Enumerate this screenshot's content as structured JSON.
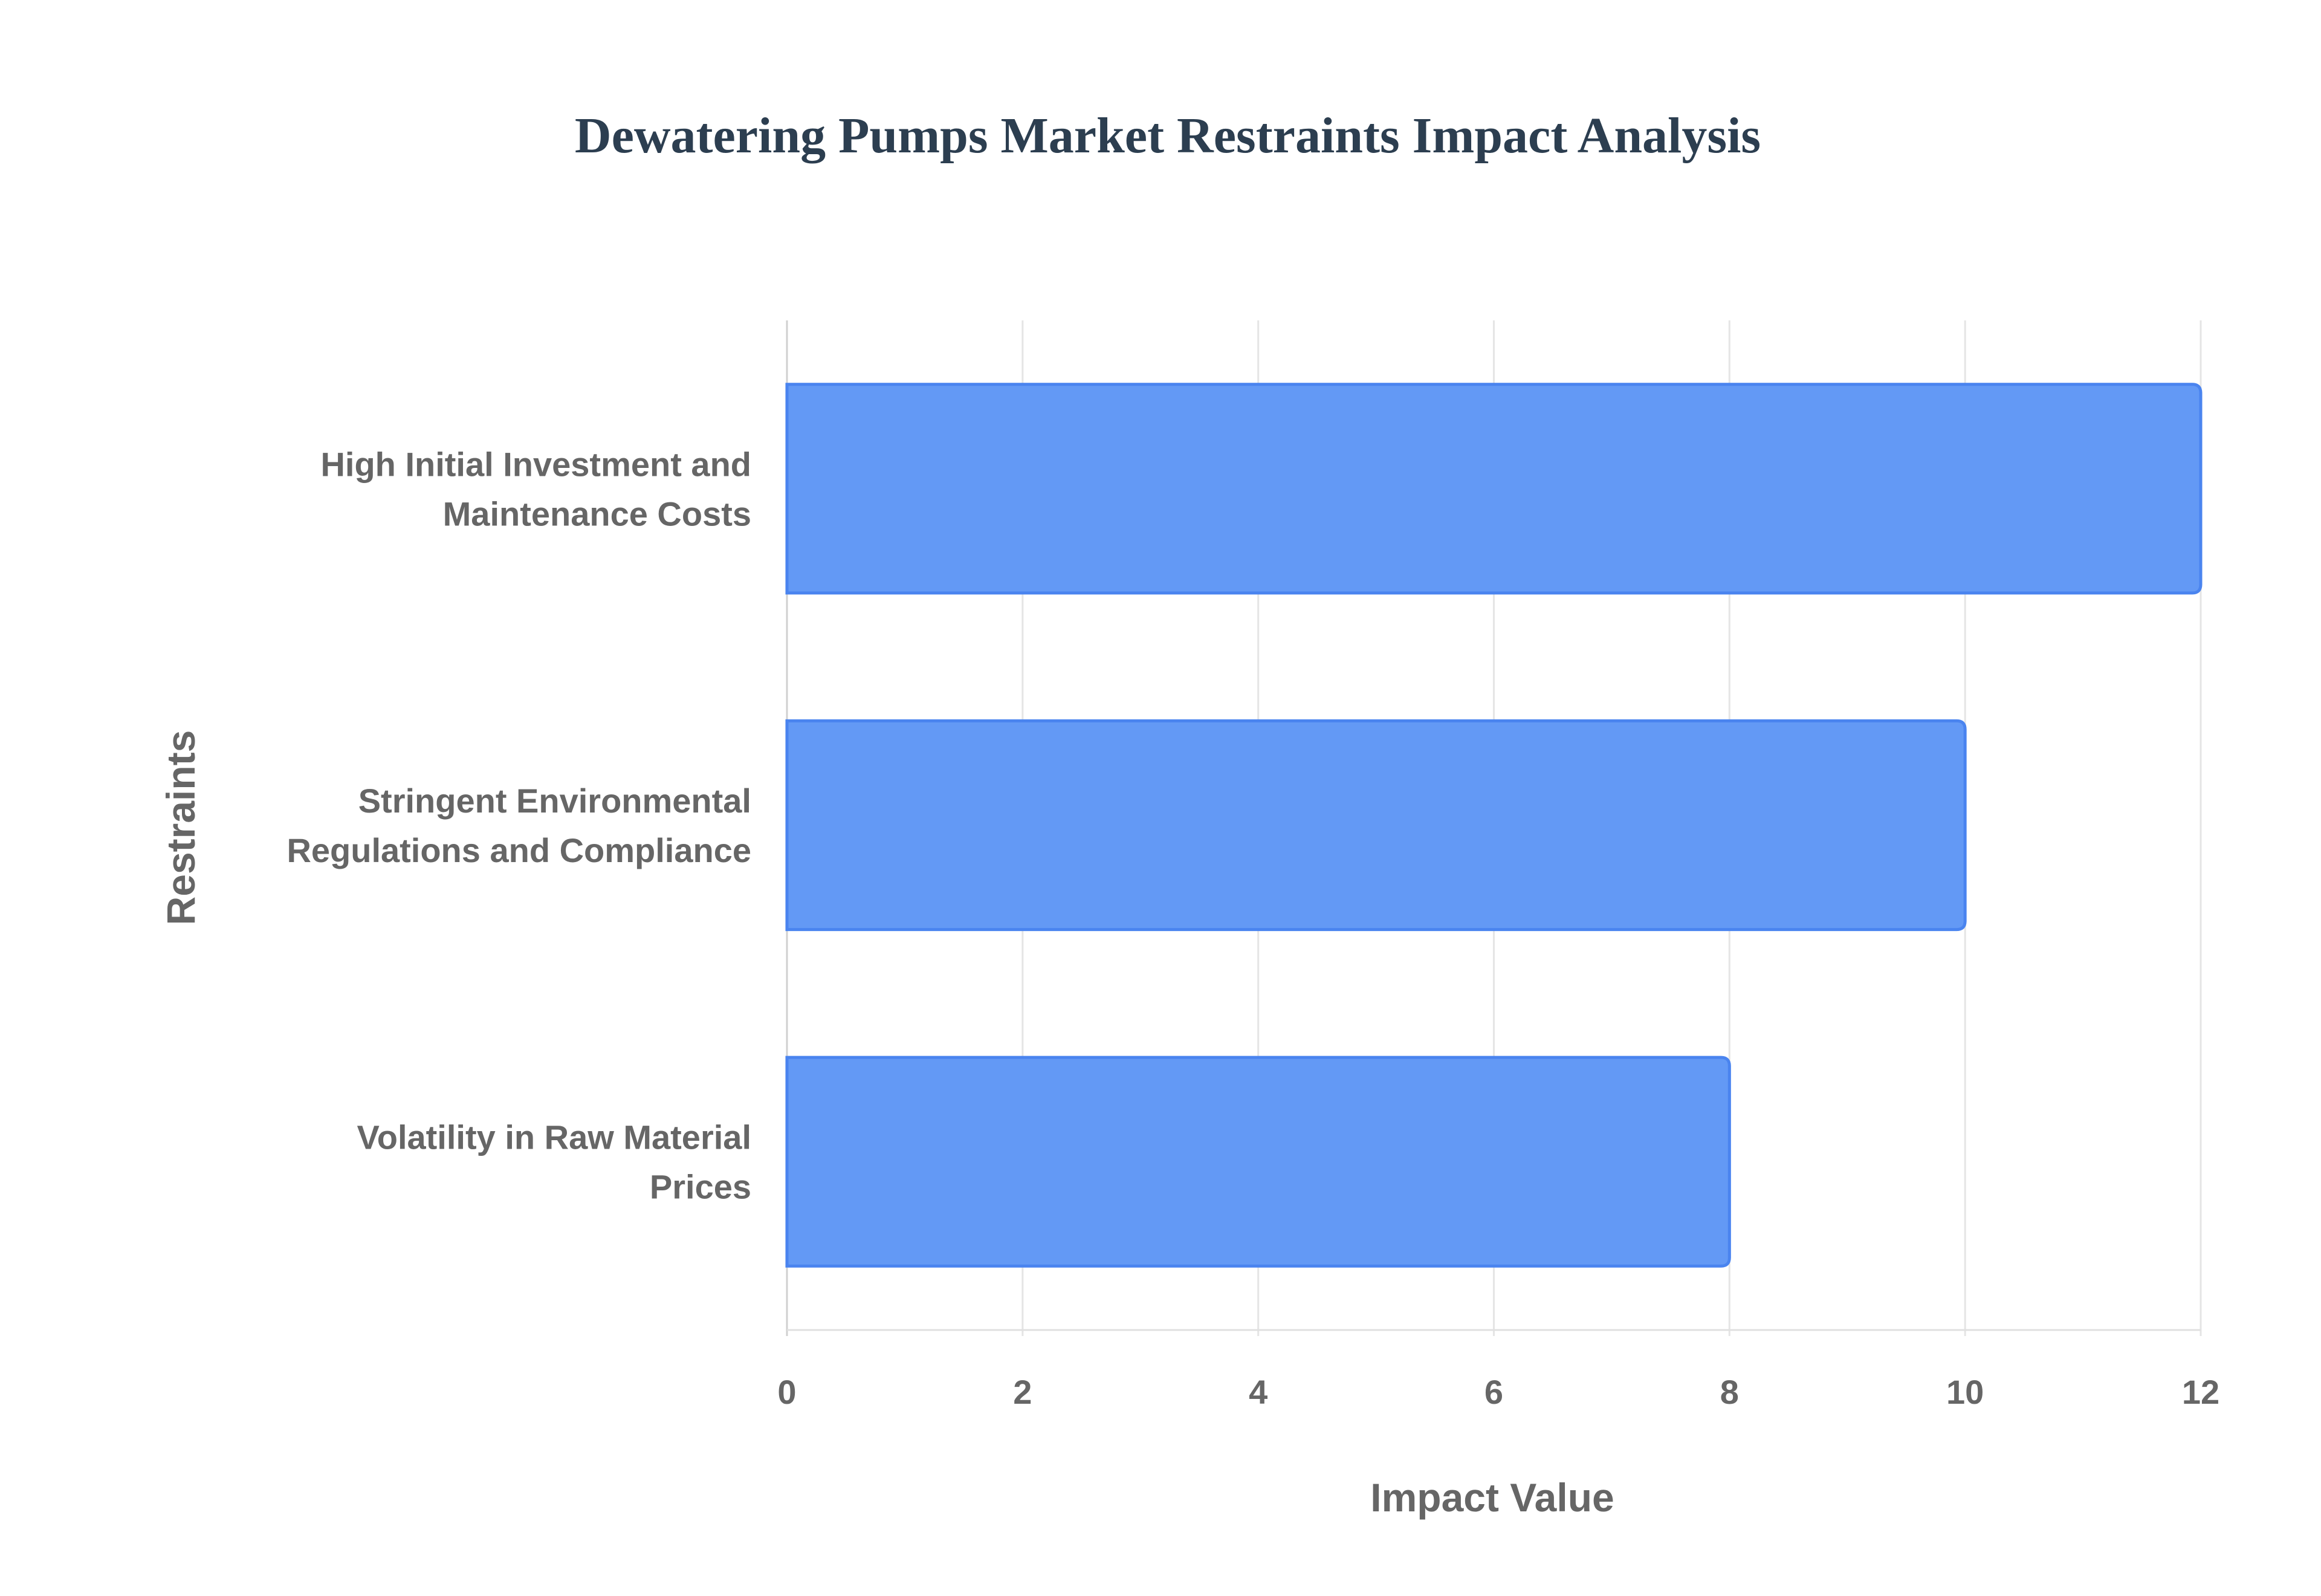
{
  "chart_data": {
    "type": "bar",
    "orientation": "horizontal",
    "title": "Dewatering Pumps Market Restraints Impact Analysis",
    "xlabel": "Impact Value",
    "ylabel": "Restraints",
    "categories": [
      [
        "High Initial Investment and",
        "Maintenance Costs"
      ],
      [
        "Stringent Environmental",
        "Regulations and Compliance"
      ],
      [
        "Volatility in Raw Material",
        "Prices"
      ]
    ],
    "values": [
      12,
      10,
      8
    ],
    "xlim": [
      0,
      12
    ],
    "xticks": [
      "0",
      "2",
      "4",
      "6",
      "8",
      "10",
      "12"
    ],
    "grid": true,
    "colors": {
      "bar_fill": "#6399f5",
      "bar_border": "#4a84ef",
      "text": "#666666",
      "title": "#2c3e50",
      "grid": "#e5e5e5"
    }
  }
}
